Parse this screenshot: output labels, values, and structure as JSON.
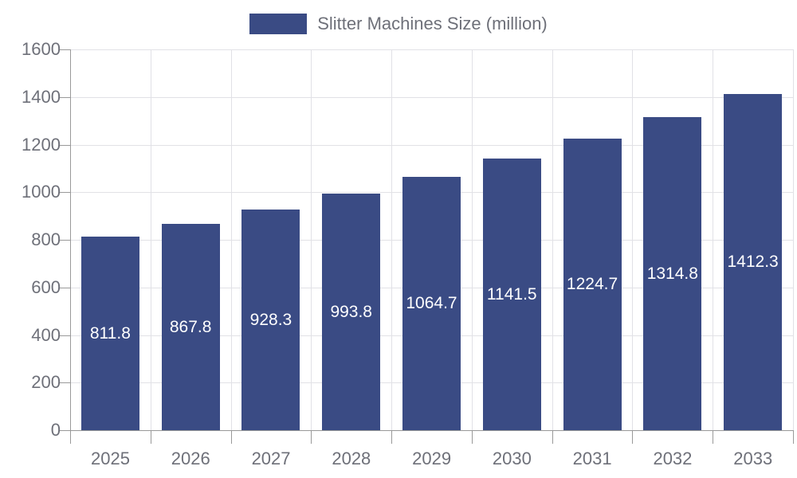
{
  "chart_data": {
    "type": "bar",
    "title": "",
    "legend": {
      "label": "Slitter Machines Size (million)",
      "position": "top-center"
    },
    "categories": [
      "2025",
      "2026",
      "2027",
      "2028",
      "2029",
      "2030",
      "2031",
      "2032",
      "2033"
    ],
    "series": [
      {
        "name": "Slitter Machines Size (million)",
        "values": [
          811.8,
          867.8,
          928.3,
          993.8,
          1064.7,
          1141.5,
          1224.7,
          1314.8,
          1412.3
        ]
      }
    ],
    "xlabel": "",
    "ylabel": "",
    "ylim": [
      0,
      1600
    ],
    "yticks": [
      0,
      200,
      400,
      600,
      800,
      1000,
      1200,
      1400,
      1600
    ],
    "grid": true,
    "bar_labels_inside": true,
    "colors": {
      "bar": "#3A4B84",
      "grid_line": "#E1E1E6",
      "axis_line": "#999999",
      "axis_text": "#6E7079",
      "legend_text": "#6E7079",
      "bar_label_text": "#FFFFFF",
      "background": "#FFFFFF"
    }
  }
}
